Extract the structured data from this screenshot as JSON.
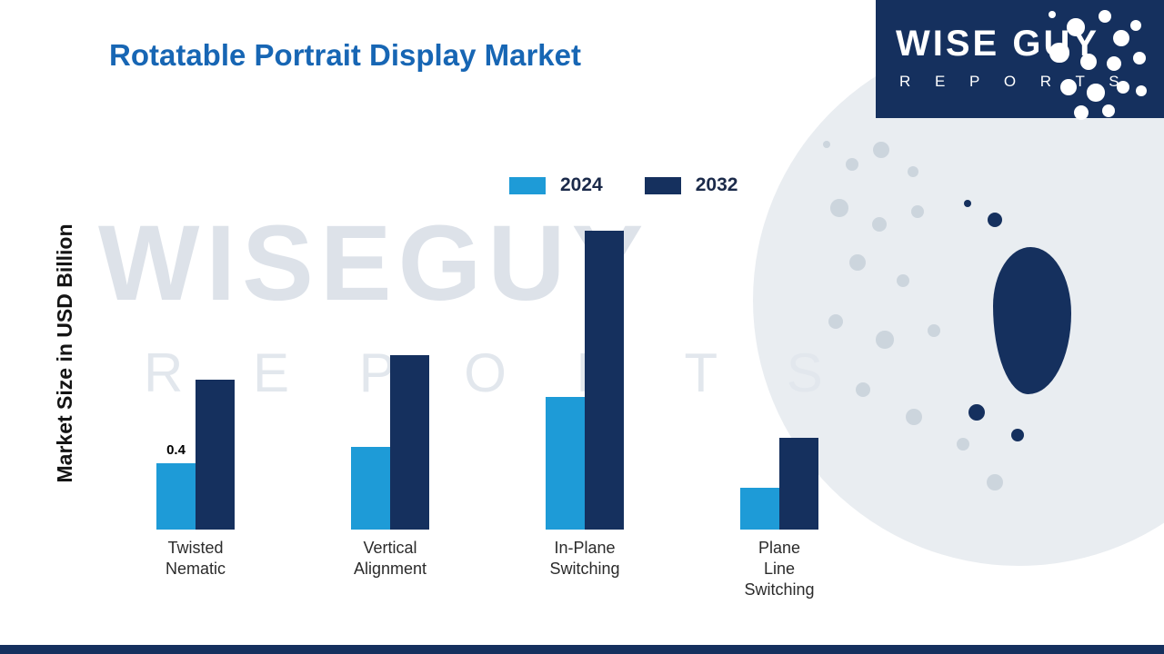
{
  "title": "Rotatable Portrait Display Market",
  "watermark": {
    "line1": "WISEGUY",
    "line2": "R E P O R T S"
  },
  "logo": {
    "line1": "WISE GUY",
    "line2": "R E P O R T S"
  },
  "colors": {
    "series_2024": "#1e9bd7",
    "series_2032": "#15305e",
    "title_blue": "#1766b4",
    "accent_navy": "#15305e"
  },
  "chart_data": {
    "type": "bar",
    "title": "Rotatable Portrait Display Market",
    "ylabel": "Market Size in USD Billion",
    "xlabel": "",
    "ylim": [
      0,
      2
    ],
    "grid": false,
    "legend_position": "top",
    "categories": [
      "Twisted Nematic",
      "Vertical Alignment",
      "In-Plane Switching",
      "Plane Line Switching"
    ],
    "series": [
      {
        "name": "2024",
        "color": "#1e9bd7",
        "values": [
          0.4,
          0.5,
          0.8,
          0.25
        ]
      },
      {
        "name": "2032",
        "color": "#15305e",
        "values": [
          0.9,
          1.05,
          1.8,
          0.55
        ]
      }
    ],
    "annotations": [
      {
        "series_index": 0,
        "category_index": 0,
        "text": "0.4"
      }
    ]
  }
}
